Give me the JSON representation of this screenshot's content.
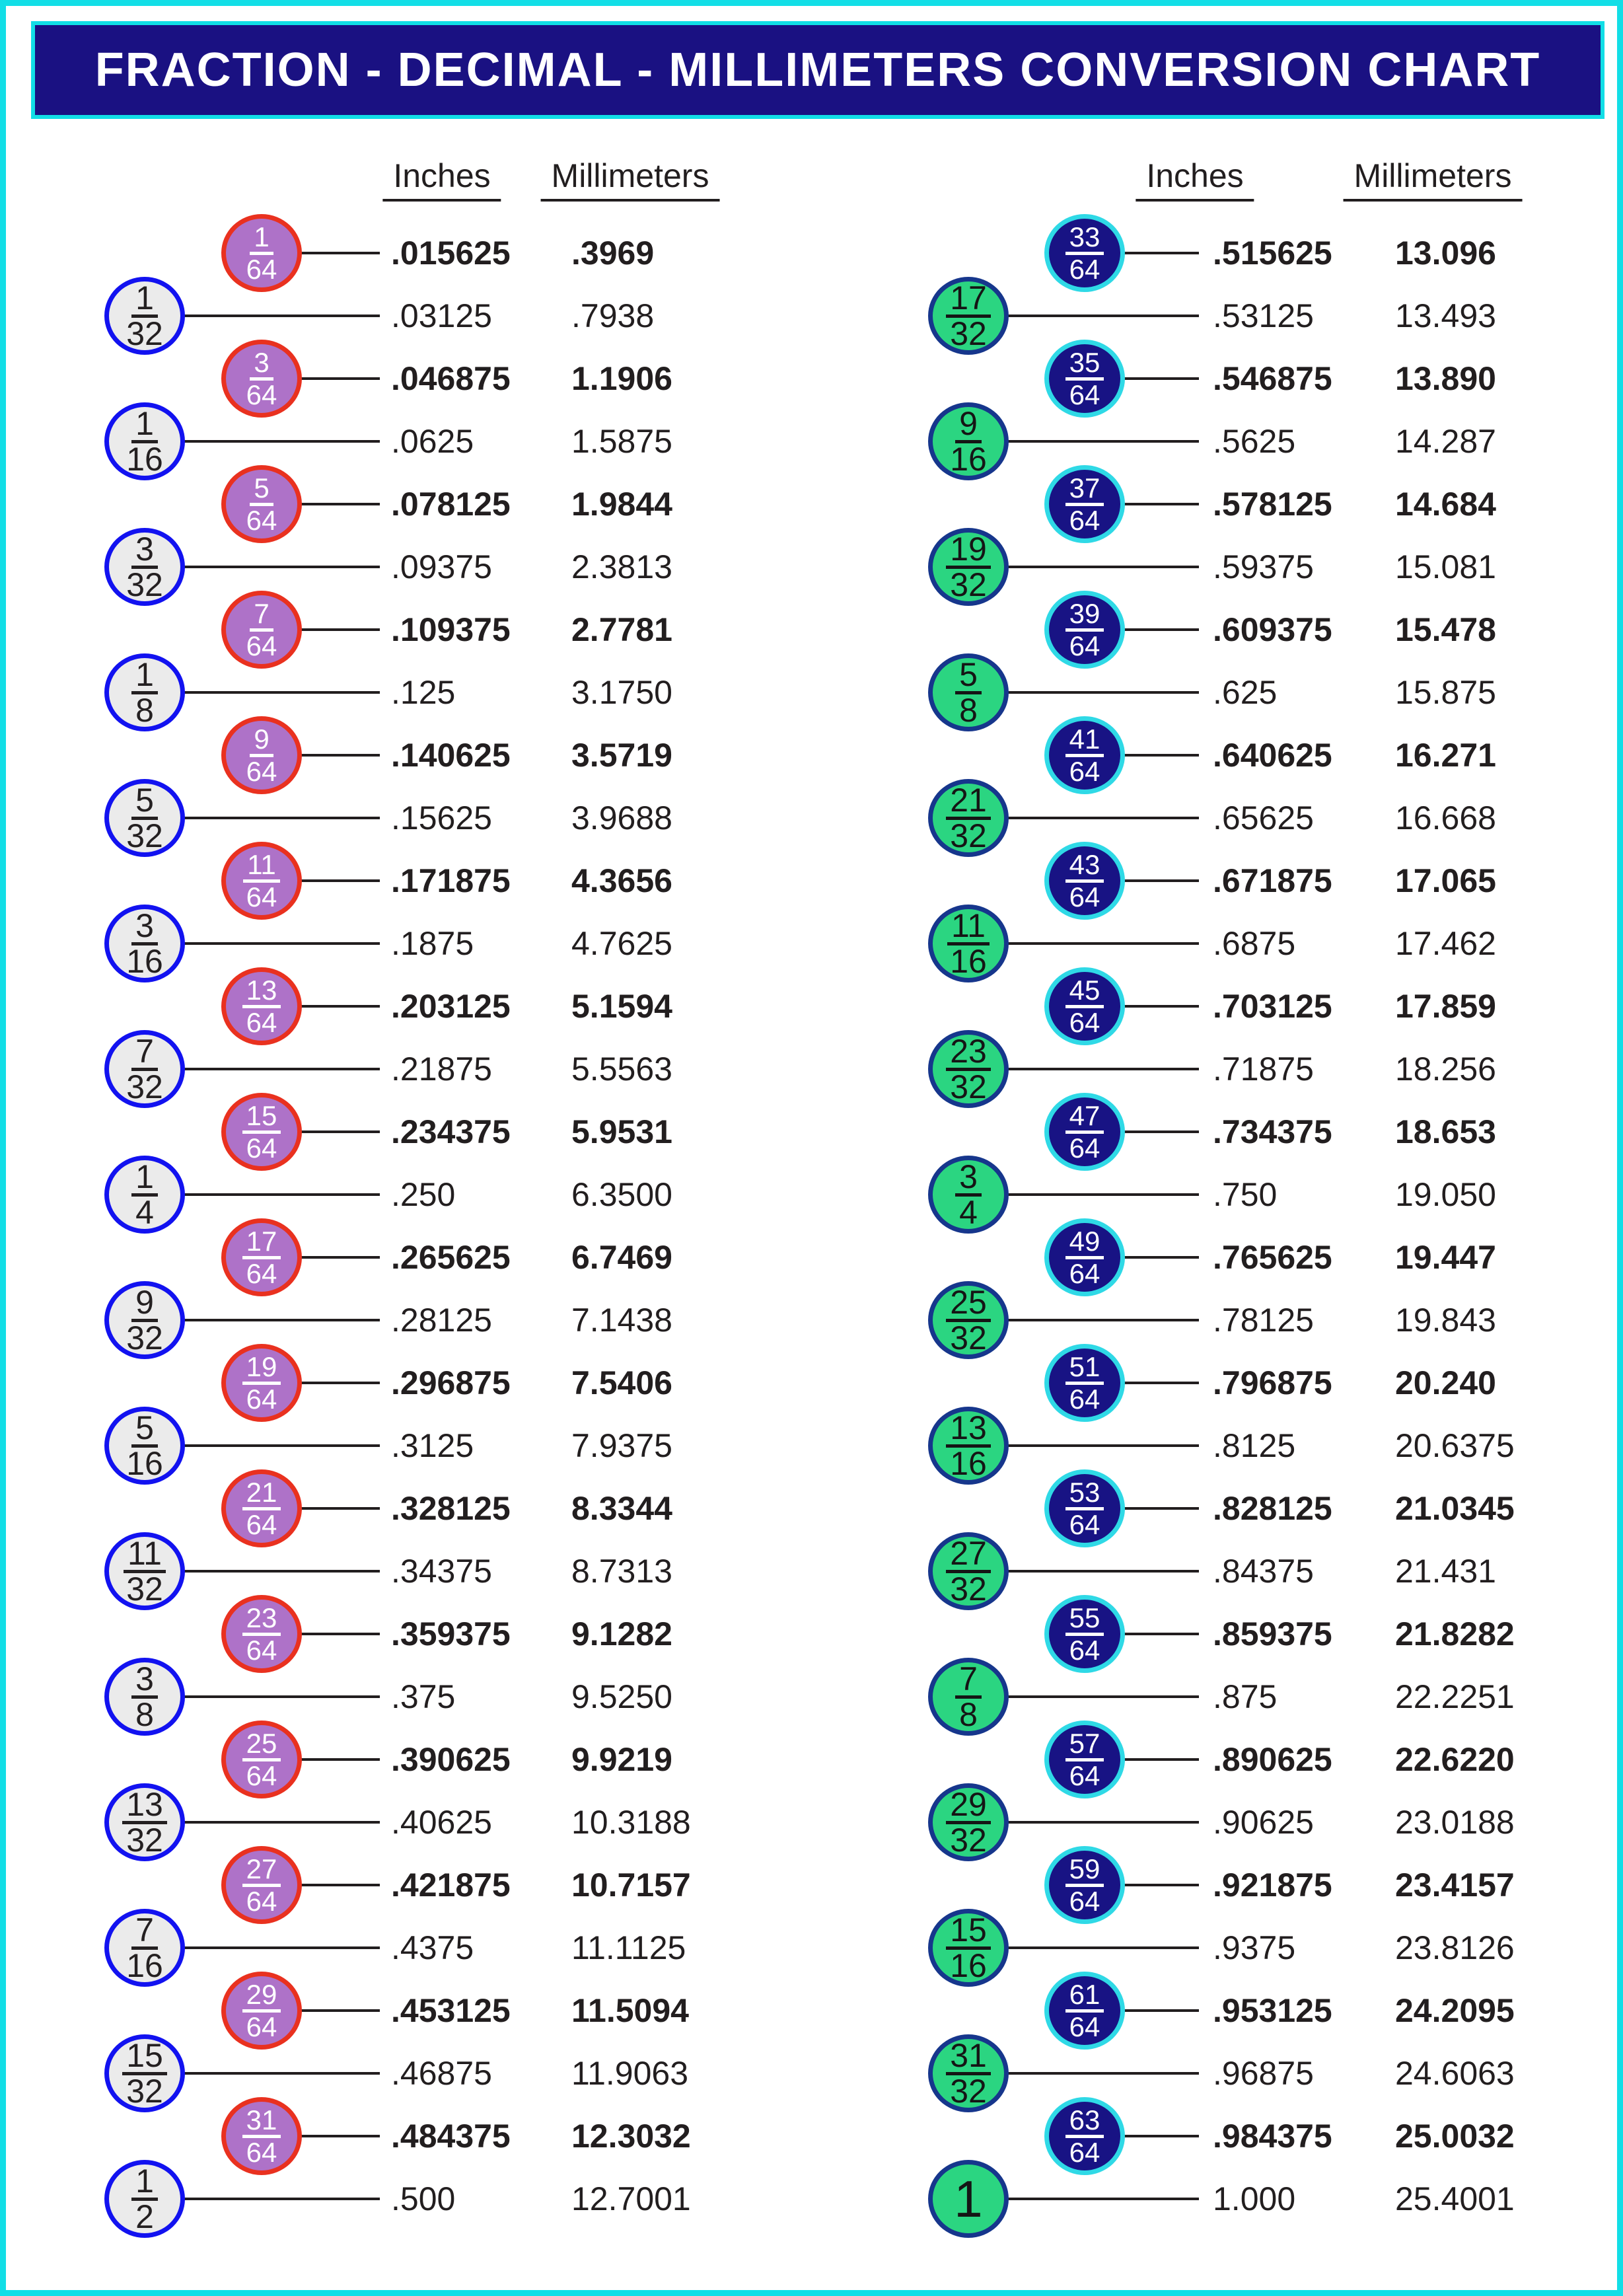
{
  "title": "FRACTION - DECIMAL - MILLIMETERS CONVERSION CHART",
  "colors": {
    "page_border_cyan": "#12dee6",
    "title_bg_navy": "#1a1182",
    "title_text": "#ffffff",
    "text_dark": "#221e1f",
    "left_64th_fill": "#ae72c8",
    "left_64th_border": "#e9311f",
    "left_major_fill": "#ebebeb",
    "left_major_border": "#1212f0",
    "right_64th_fill": "#181384",
    "right_64th_border": "#2fd9e6",
    "right_major_fill": "#2bd581",
    "right_major_border": "#16368c"
  },
  "columns": [
    {
      "id": "left",
      "inches_header": "Inches",
      "mm_header": "Millimeters",
      "rows": [
        {
          "num": "1",
          "den": "64",
          "inches": ".015625",
          "mm": ".3969"
        },
        {
          "num": "1",
          "den": "32",
          "inches": ".03125",
          "mm": ".7938"
        },
        {
          "num": "3",
          "den": "64",
          "inches": ".046875",
          "mm": "1.1906"
        },
        {
          "num": "1",
          "den": "16",
          "inches": ".0625",
          "mm": "1.5875"
        },
        {
          "num": "5",
          "den": "64",
          "inches": ".078125",
          "mm": "1.9844"
        },
        {
          "num": "3",
          "den": "32",
          "inches": ".09375",
          "mm": "2.3813"
        },
        {
          "num": "7",
          "den": "64",
          "inches": ".109375",
          "mm": "2.7781"
        },
        {
          "num": "1",
          "den": "8",
          "inches": ".125",
          "mm": "3.1750"
        },
        {
          "num": "9",
          "den": "64",
          "inches": ".140625",
          "mm": "3.5719"
        },
        {
          "num": "5",
          "den": "32",
          "inches": ".15625",
          "mm": "3.9688"
        },
        {
          "num": "11",
          "den": "64",
          "inches": ".171875",
          "mm": "4.3656"
        },
        {
          "num": "3",
          "den": "16",
          "inches": ".1875",
          "mm": "4.7625"
        },
        {
          "num": "13",
          "den": "64",
          "inches": ".203125",
          "mm": "5.1594"
        },
        {
          "num": "7",
          "den": "32",
          "inches": ".21875",
          "mm": "5.5563"
        },
        {
          "num": "15",
          "den": "64",
          "inches": ".234375",
          "mm": "5.9531"
        },
        {
          "num": "1",
          "den": "4",
          "inches": ".250",
          "mm": "6.3500"
        },
        {
          "num": "17",
          "den": "64",
          "inches": ".265625",
          "mm": "6.7469"
        },
        {
          "num": "9",
          "den": "32",
          "inches": ".28125",
          "mm": "7.1438"
        },
        {
          "num": "19",
          "den": "64",
          "inches": ".296875",
          "mm": "7.5406"
        },
        {
          "num": "5",
          "den": "16",
          "inches": ".3125",
          "mm": "7.9375"
        },
        {
          "num": "21",
          "den": "64",
          "inches": ".328125",
          "mm": "8.3344"
        },
        {
          "num": "11",
          "den": "32",
          "inches": ".34375",
          "mm": "8.7313"
        },
        {
          "num": "23",
          "den": "64",
          "inches": ".359375",
          "mm": "9.1282"
        },
        {
          "num": "3",
          "den": "8",
          "inches": ".375",
          "mm": "9.5250"
        },
        {
          "num": "25",
          "den": "64",
          "inches": ".390625",
          "mm": "9.9219"
        },
        {
          "num": "13",
          "den": "32",
          "inches": ".40625",
          "mm": "10.3188"
        },
        {
          "num": "27",
          "den": "64",
          "inches": ".421875",
          "mm": "10.7157"
        },
        {
          "num": "7",
          "den": "16",
          "inches": ".4375",
          "mm": "11.1125"
        },
        {
          "num": "29",
          "den": "64",
          "inches": ".453125",
          "mm": "11.5094"
        },
        {
          "num": "15",
          "den": "32",
          "inches": ".46875",
          "mm": "11.9063"
        },
        {
          "num": "31",
          "den": "64",
          "inches": ".484375",
          "mm": "12.3032"
        },
        {
          "num": "1",
          "den": "2",
          "inches": ".500",
          "mm": "12.7001"
        }
      ]
    },
    {
      "id": "right",
      "inches_header": "Inches",
      "mm_header": "Millimeters",
      "rows": [
        {
          "num": "33",
          "den": "64",
          "inches": ".515625",
          "mm": "13.096"
        },
        {
          "num": "17",
          "den": "32",
          "inches": ".53125",
          "mm": "13.493"
        },
        {
          "num": "35",
          "den": "64",
          "inches": ".546875",
          "mm": "13.890"
        },
        {
          "num": "9",
          "den": "16",
          "inches": ".5625",
          "mm": "14.287"
        },
        {
          "num": "37",
          "den": "64",
          "inches": ".578125",
          "mm": "14.684"
        },
        {
          "num": "19",
          "den": "32",
          "inches": ".59375",
          "mm": "15.081"
        },
        {
          "num": "39",
          "den": "64",
          "inches": ".609375",
          "mm": "15.478"
        },
        {
          "num": "5",
          "den": "8",
          "inches": ".625",
          "mm": "15.875"
        },
        {
          "num": "41",
          "den": "64",
          "inches": ".640625",
          "mm": "16.271"
        },
        {
          "num": "21",
          "den": "32",
          "inches": ".65625",
          "mm": "16.668"
        },
        {
          "num": "43",
          "den": "64",
          "inches": ".671875",
          "mm": "17.065"
        },
        {
          "num": "11",
          "den": "16",
          "inches": ".6875",
          "mm": "17.462"
        },
        {
          "num": "45",
          "den": "64",
          "inches": ".703125",
          "mm": "17.859"
        },
        {
          "num": "23",
          "den": "32",
          "inches": ".71875",
          "mm": "18.256"
        },
        {
          "num": "47",
          "den": "64",
          "inches": ".734375",
          "mm": "18.653"
        },
        {
          "num": "3",
          "den": "4",
          "inches": ".750",
          "mm": "19.050"
        },
        {
          "num": "49",
          "den": "64",
          "inches": ".765625",
          "mm": "19.447"
        },
        {
          "num": "25",
          "den": "32",
          "inches": ".78125",
          "mm": "19.843"
        },
        {
          "num": "51",
          "den": "64",
          "inches": ".796875",
          "mm": "20.240"
        },
        {
          "num": "13",
          "den": "16",
          "inches": ".8125",
          "mm": "20.6375"
        },
        {
          "num": "53",
          "den": "64",
          "inches": ".828125",
          "mm": "21.0345"
        },
        {
          "num": "27",
          "den": "32",
          "inches": ".84375",
          "mm": "21.431"
        },
        {
          "num": "55",
          "den": "64",
          "inches": ".859375",
          "mm": "21.8282"
        },
        {
          "num": "7",
          "den": "8",
          "inches": ".875",
          "mm": "22.2251"
        },
        {
          "num": "57",
          "den": "64",
          "inches": ".890625",
          "mm": "22.6220"
        },
        {
          "num": "29",
          "den": "32",
          "inches": ".90625",
          "mm": "23.0188"
        },
        {
          "num": "59",
          "den": "64",
          "inches": ".921875",
          "mm": "23.4157"
        },
        {
          "num": "15",
          "den": "16",
          "inches": ".9375",
          "mm": "23.8126"
        },
        {
          "num": "61",
          "den": "64",
          "inches": ".953125",
          "mm": "24.2095"
        },
        {
          "num": "31",
          "den": "32",
          "inches": ".96875",
          "mm": "24.6063"
        },
        {
          "num": "63",
          "den": "64",
          "inches": ".984375",
          "mm": "25.0032"
        },
        {
          "num": "1",
          "den": null,
          "inches": "1.000",
          "mm": "25.4001"
        }
      ]
    }
  ]
}
